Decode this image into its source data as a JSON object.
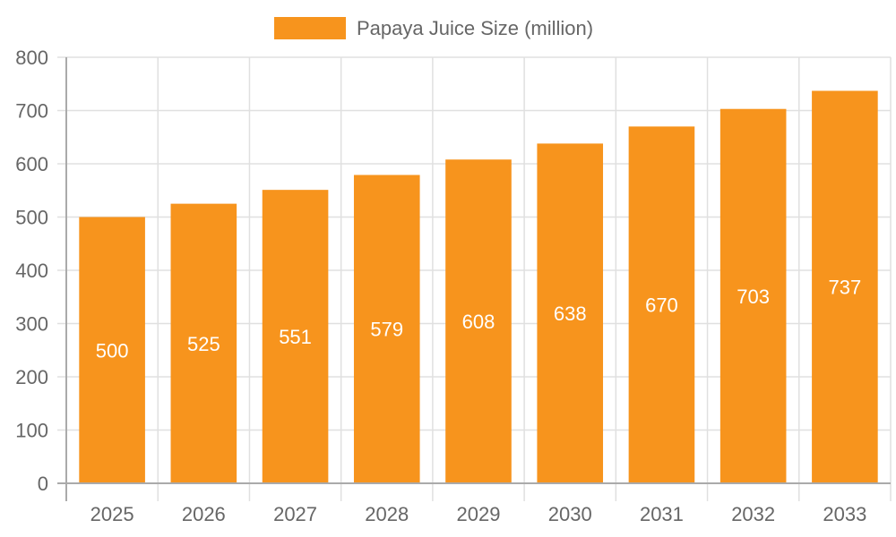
{
  "chart_data": {
    "type": "bar",
    "title": "",
    "categories": [
      "2025",
      "2026",
      "2027",
      "2028",
      "2029",
      "2030",
      "2031",
      "2032",
      "2033"
    ],
    "series": [
      {
        "name": "Papaya Juice Size (million)",
        "values": [
          500,
          525,
          551,
          579,
          608,
          638,
          670,
          703,
          737
        ],
        "color": "#f7941d"
      }
    ],
    "xlabel": "",
    "ylabel": "",
    "ylim": [
      0,
      800
    ],
    "yticks": [
      0,
      100,
      200,
      300,
      400,
      500,
      600,
      700,
      800
    ],
    "grid": true,
    "legend_position": "top",
    "data_labels": true
  },
  "legend": {
    "label": "Papaya Juice Size (million)",
    "color": "#f7941d"
  }
}
